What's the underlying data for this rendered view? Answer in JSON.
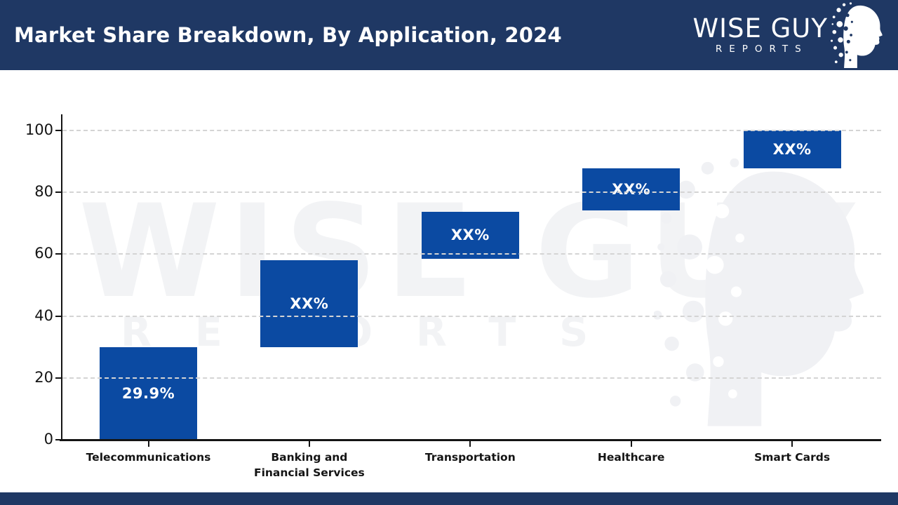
{
  "header": {
    "title": "Market Share Breakdown, By Application, 2024",
    "bg_color": "#1F3864"
  },
  "logo": {
    "line1": "WISE GUY",
    "line2": "REPORTS"
  },
  "watermark": {
    "line1": "WISE GUY",
    "line2": "REPORTS"
  },
  "chart_data": {
    "type": "bar",
    "subtype": "waterfall",
    "title": "Market Share Breakdown, By Application, 2024",
    "xlabel": "",
    "ylabel": "",
    "ylim": [
      0,
      100
    ],
    "yticks": [
      0,
      20,
      40,
      60,
      80,
      100
    ],
    "grid": "horizontal-dashed",
    "legend": "none",
    "bar_color": "#0B4AA2",
    "bar_label_color": "#FFFFFF",
    "categories": [
      "Telecommunications",
      "Banking and Financial Services",
      "Transportation",
      "Healthcare",
      "Smart Cards"
    ],
    "axis_label_lines": [
      [
        "Telecommunications"
      ],
      [
        "Banking and",
        "Financial Services"
      ],
      [
        "Transportation"
      ],
      [
        "Healthcare"
      ],
      [
        "Smart Cards"
      ]
    ],
    "segments": [
      {
        "category": "Telecommunications",
        "start": 0,
        "end": 29.9,
        "label": "29.9%"
      },
      {
        "category": "Banking and Financial Services",
        "start": 29.9,
        "end": 58.0,
        "label": "XX%"
      },
      {
        "category": "Transportation",
        "start": 58.4,
        "end": 73.8,
        "label": "XX%"
      },
      {
        "category": "Healthcare",
        "start": 74.1,
        "end": 87.8,
        "label": "XX%"
      },
      {
        "category": "Smart Cards",
        "start": 87.8,
        "end": 100,
        "label": "XX%"
      }
    ],
    "footer_color": "#1F3864"
  }
}
